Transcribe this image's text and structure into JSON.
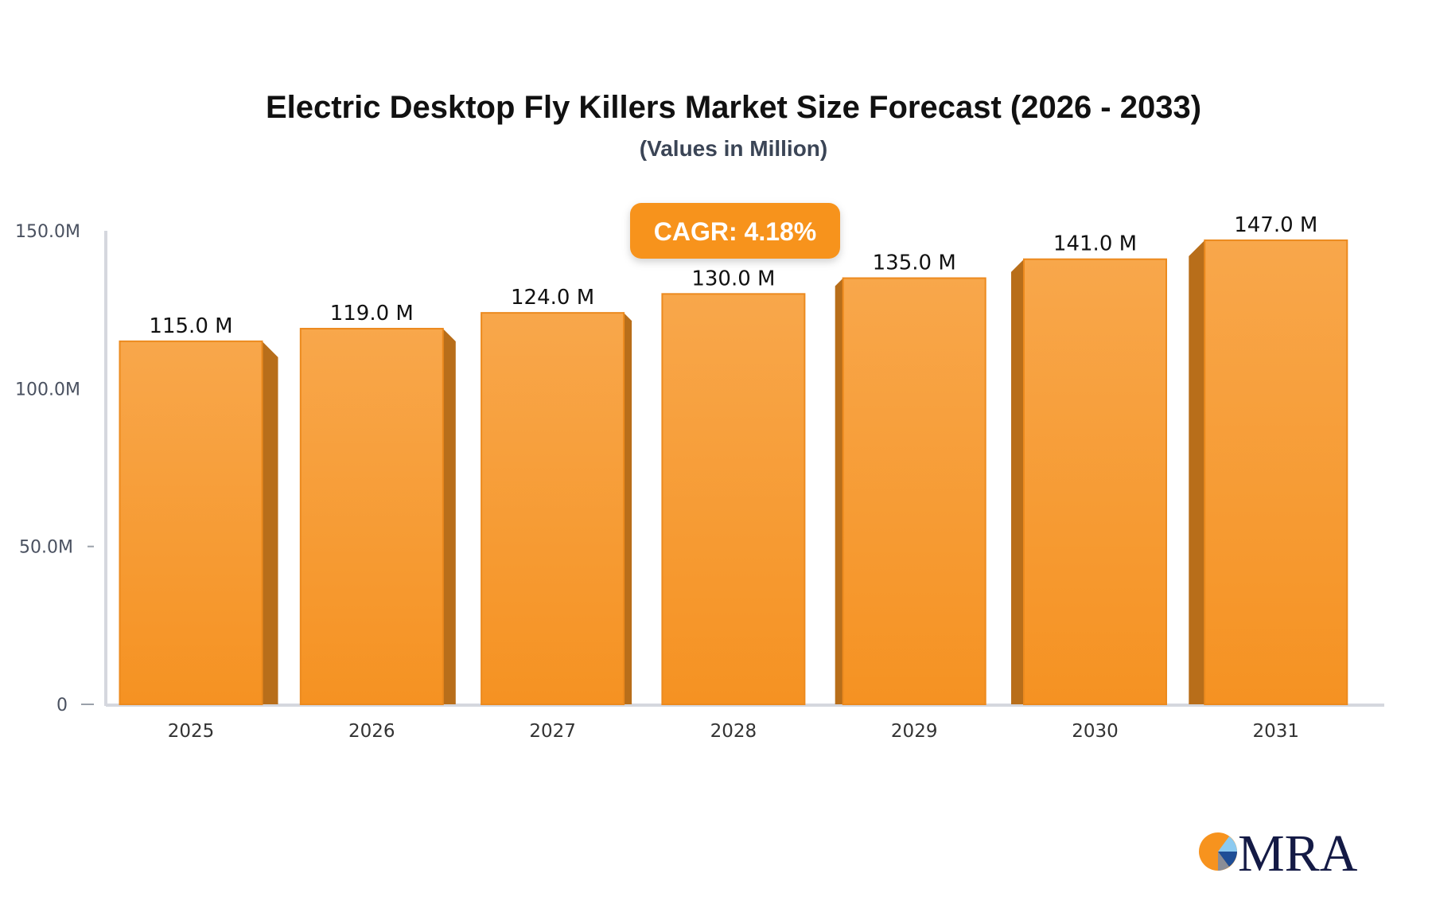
{
  "chart_data": {
    "type": "bar",
    "title": "Electric Desktop Fly Killers Market Size Forecast (2026 - 2033)",
    "subtitle": "(Values in Million)",
    "categories": [
      "2025",
      "2026",
      "2027",
      "2028",
      "2029",
      "2030",
      "2031"
    ],
    "values": [
      115.0,
      119.0,
      124.0,
      130.0,
      135.0,
      141.0,
      147.0
    ],
    "data_labels": [
      "115.0 M",
      "119.0 M",
      "124.0 M",
      "130.0 M",
      "135.0 M",
      "141.0 M",
      "147.0 M"
    ],
    "ylim": [
      0,
      150
    ],
    "yticks": [
      0,
      50,
      100,
      150
    ],
    "ytick_labels": [
      "0",
      "50.0M",
      "100.0M",
      "150.0M"
    ],
    "xlabel": "",
    "ylabel": "",
    "grid": false,
    "annotation": "CAGR: 4.18%",
    "colors": {
      "bar_front": "#f7a03c",
      "bar_bottom": "#f59222",
      "bar_side": "#b86e1a",
      "badge": "#f7931e",
      "axis": "#d5d7de"
    }
  },
  "logo": {
    "text": "MRA"
  }
}
